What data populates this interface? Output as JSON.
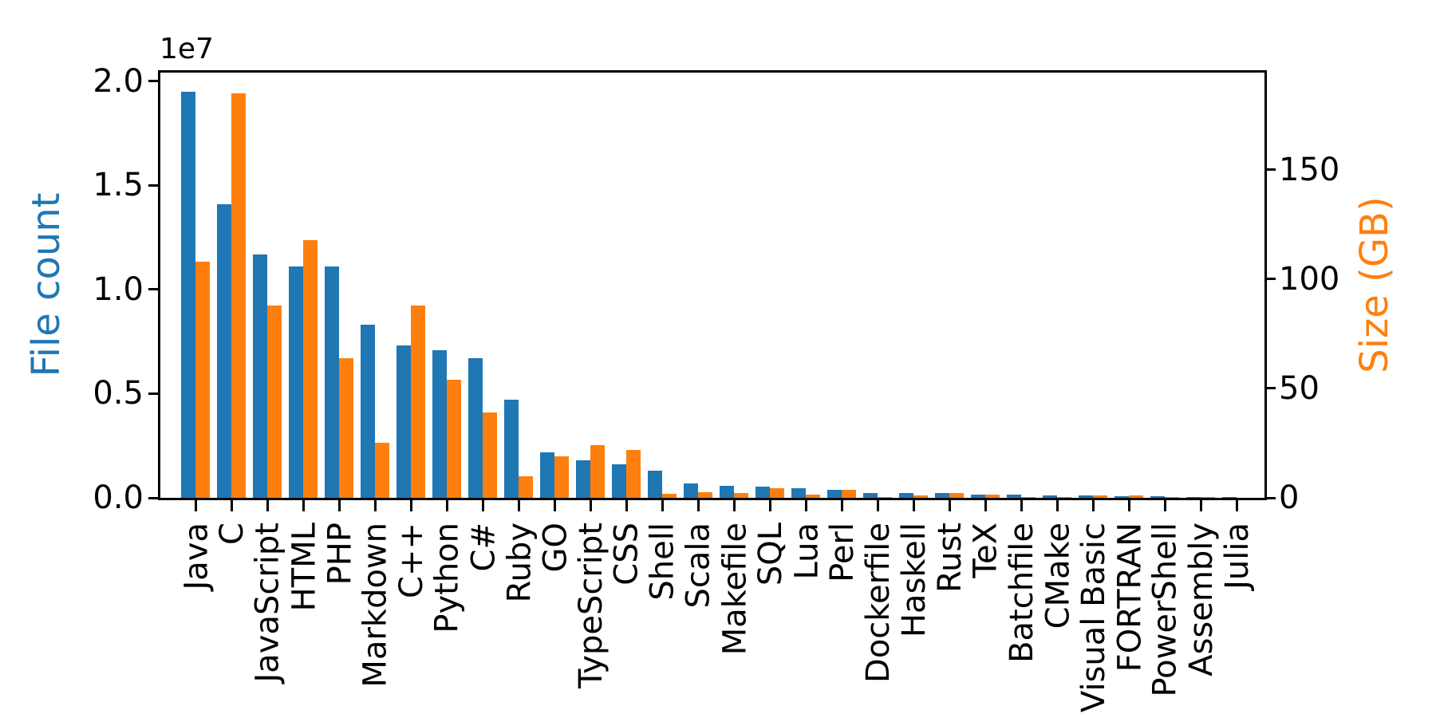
{
  "chart_data": {
    "type": "bar",
    "title": "",
    "grid": false,
    "legend_position": "none",
    "categories": [
      "Java",
      "C",
      "JavaScript",
      "HTML",
      "PHP",
      "Markdown",
      "C++",
      "Python",
      "C#",
      "Ruby",
      "GO",
      "TypeScript",
      "CSS",
      "Shell",
      "Scala",
      "Makefile",
      "SQL",
      "Lua",
      "Perl",
      "Dockerfile",
      "Haskell",
      "Rust",
      "TeX",
      "Batchfile",
      "CMake",
      "Visual Basic",
      "FORTRAN",
      "PowerShell",
      "Assembly",
      "Julia"
    ],
    "series": [
      {
        "name": "File count",
        "axis": "left",
        "color": "#1f77b4",
        "values": [
          19500000,
          14100000,
          11700000,
          11100000,
          11100000,
          8300000,
          7300000,
          7100000,
          6700000,
          4700000,
          2200000,
          1800000,
          1600000,
          1300000,
          700000,
          560000,
          550000,
          460000,
          370000,
          240000,
          230000,
          230000,
          150000,
          150000,
          100000,
          100000,
          80000,
          90000,
          40000,
          30000
        ]
      },
      {
        "name": "Size (GB)",
        "axis": "right",
        "color": "#ff7f0e",
        "values": [
          108,
          185,
          88,
          118,
          64,
          25,
          88,
          54,
          39,
          10,
          19,
          24,
          22,
          1.8,
          2.7,
          2.1,
          4.4,
          1.6,
          3.7,
          0.3,
          1.0,
          2.1,
          1.6,
          0.4,
          0.3,
          1.2,
          1.2,
          0.2,
          0.5,
          0.1
        ]
      }
    ],
    "left_axis": {
      "label": "File count",
      "color": "#1f77b4",
      "offset_text": "1e7",
      "tick_labels": [
        "0.0",
        "0.5",
        "1.0",
        "1.5",
        "2.0"
      ],
      "tick_values": [
        0,
        5000000,
        10000000,
        15000000,
        20000000
      ],
      "ylim": [
        0,
        20420000
      ]
    },
    "right_axis": {
      "label": "Size (GB)",
      "color": "#ff7f0e",
      "tick_labels": [
        "0",
        "50",
        "100",
        "150"
      ],
      "tick_values": [
        0,
        50,
        100,
        150
      ],
      "ylim": [
        0,
        194.5
      ]
    },
    "x_axis": {
      "tick_label_rotation": 90
    }
  }
}
